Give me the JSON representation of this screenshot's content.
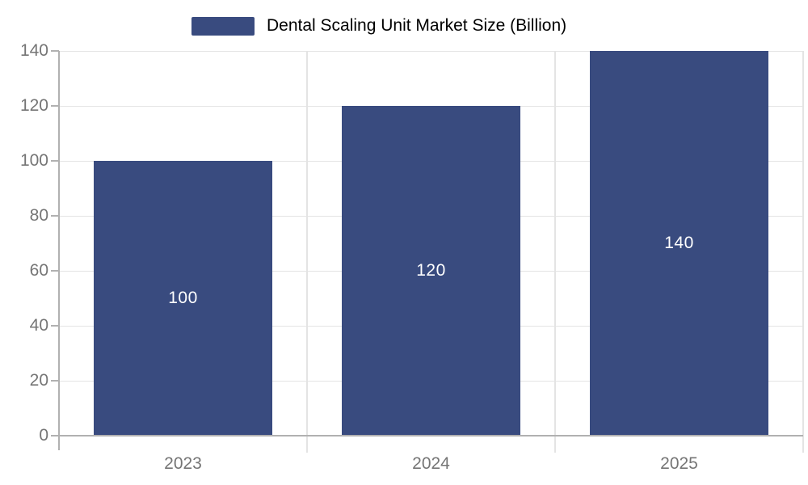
{
  "legend": {
    "label": "Dental Scaling Unit Market Size (Billion)"
  },
  "colors": {
    "bar": "#394B7F",
    "axis_line": "#B1B1B1",
    "gridline": "#E4E4E4",
    "tick_text": "#757575",
    "bar_label_text": "#FFFFFF",
    "background": "#FFFFFF"
  },
  "chart_data": {
    "type": "bar",
    "title": "Dental Scaling Unit Market Size (Billion)",
    "categories": [
      "2023",
      "2024",
      "2025"
    ],
    "values": [
      100,
      120,
      140
    ],
    "series": [
      {
        "name": "Dental Scaling Unit Market Size (Billion)",
        "values": [
          100,
          120,
          140
        ]
      }
    ],
    "xlabel": "",
    "ylabel": "",
    "ylim": [
      0,
      140
    ],
    "y_ticks": [
      0,
      20,
      40,
      60,
      80,
      100,
      120,
      140
    ],
    "grid": true,
    "legend_position": "top",
    "bar_label_position": "inside-center"
  }
}
